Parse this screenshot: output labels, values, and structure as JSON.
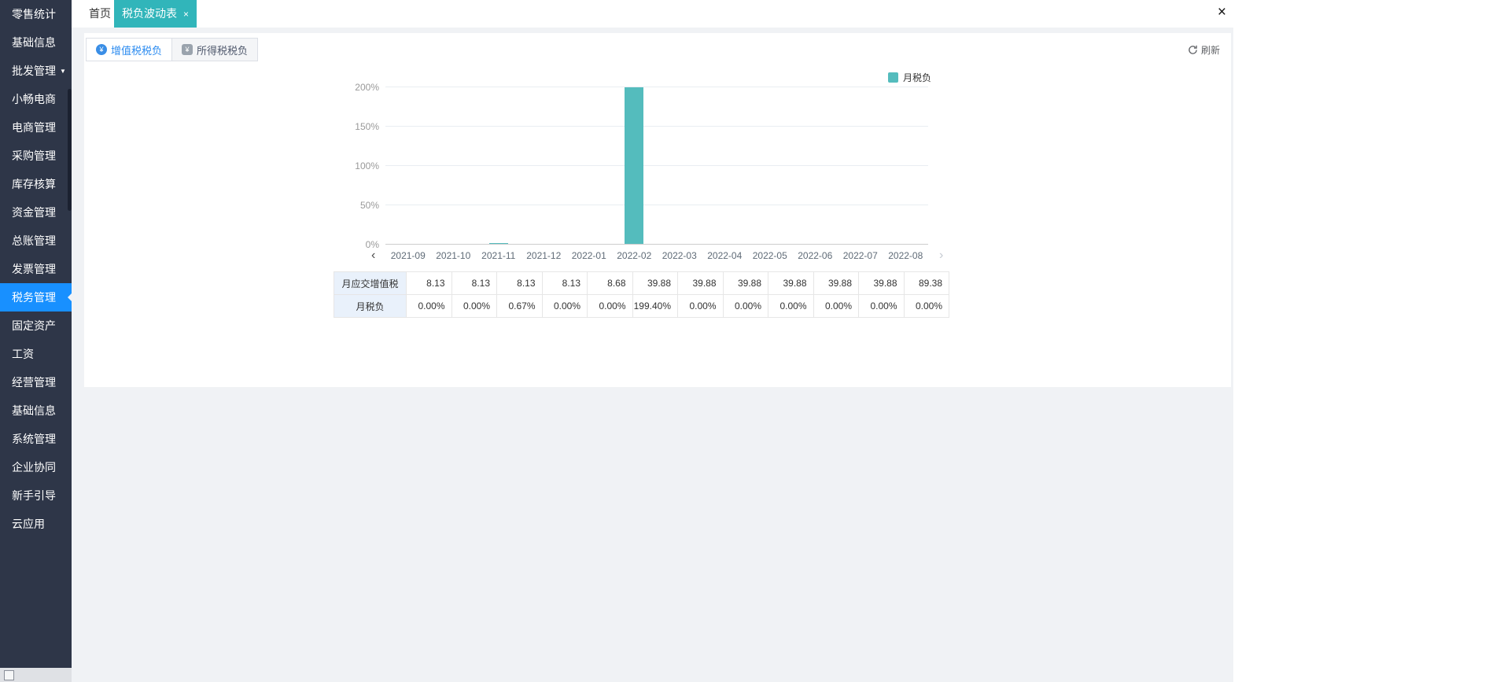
{
  "tabbar": {
    "home": "首页",
    "active_label": "税负波动表"
  },
  "icons": {
    "close": "×",
    "caret_down": "▼",
    "currency": "¥",
    "prev_arrow": "‹",
    "next_arrow": "›"
  },
  "sidebar": {
    "items": [
      {
        "label": "零售统计"
      },
      {
        "label": "基础信息"
      },
      {
        "label": "批发管理",
        "caret": true
      },
      {
        "label": "小畅电商"
      },
      {
        "label": "电商管理"
      },
      {
        "label": "采购管理"
      },
      {
        "label": "库存核算"
      },
      {
        "label": "资金管理"
      },
      {
        "label": "总账管理"
      },
      {
        "label": "发票管理"
      },
      {
        "label": "税务管理",
        "active": true
      },
      {
        "label": "固定资产"
      },
      {
        "label": "工资"
      },
      {
        "label": "经营管理"
      },
      {
        "label": "基础信息"
      },
      {
        "label": "系统管理"
      },
      {
        "label": "企业协同"
      },
      {
        "label": "新手引导"
      },
      {
        "label": "云应用"
      }
    ]
  },
  "panel": {
    "tabs": [
      {
        "label": "增值税税负",
        "active": true
      },
      {
        "label": "所得税税负",
        "active": false
      }
    ],
    "refresh_label": "刷新"
  },
  "chart_data": {
    "type": "bar",
    "title": "",
    "categories": [
      "2021-09",
      "2021-10",
      "2021-11",
      "2021-12",
      "2022-01",
      "2022-02",
      "2022-03",
      "2022-04",
      "2022-05",
      "2022-06",
      "2022-07",
      "2022-08"
    ],
    "series": [
      {
        "name": "月税负",
        "color": "#54bcbd",
        "values": [
          0,
          0,
          0.67,
          0,
          0,
          199.4,
          0,
          0,
          0,
          0,
          0,
          0
        ]
      }
    ],
    "y_ticks": [
      "0%",
      "50%",
      "100%",
      "150%",
      "200%"
    ],
    "ylim": [
      0,
      200
    ],
    "unit": "%",
    "legend_position": "top-right",
    "grid": true
  },
  "table": {
    "rows": [
      {
        "label": "月应交增值税",
        "values": [
          "8.13",
          "8.13",
          "8.13",
          "8.13",
          "8.68",
          "39.88",
          "39.88",
          "39.88",
          "39.88",
          "39.88",
          "39.88",
          "89.38"
        ]
      },
      {
        "label": "月税负",
        "values": [
          "0.00%",
          "0.00%",
          "0.67%",
          "0.00%",
          "0.00%",
          "199.40%",
          "0.00%",
          "0.00%",
          "0.00%",
          "0.00%",
          "0.00%",
          "0.00%"
        ]
      }
    ]
  },
  "colors": {
    "sidebar_bg": "#2e3648",
    "sidebar_active": "#1890ff",
    "tab_active": "#31b5ba",
    "bar": "#54bcbd",
    "subtab_active_text": "#2d8cf0",
    "table_header_bg": "#e9f1fb"
  }
}
